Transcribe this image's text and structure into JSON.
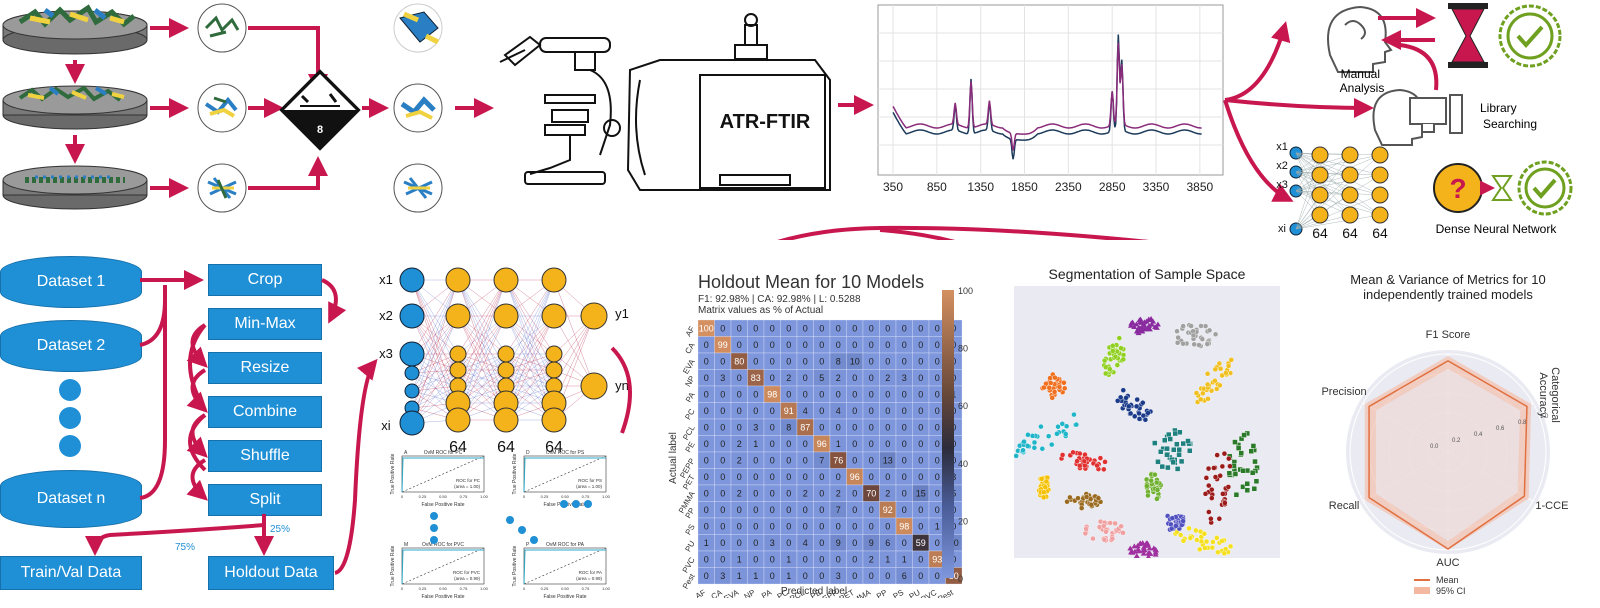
{
  "fig_top": {
    "hazard_number": "8",
    "instrument_label": "ATR-FTIR",
    "spectrum_xticks": [
      "350",
      "850",
      "1350",
      "1850",
      "2350",
      "2850",
      "3350",
      "3850"
    ],
    "manual_analysis": "Manual\nAnalysis",
    "library_searching": "Library\nSearching",
    "dnn_inputs": [
      "x1",
      "x2",
      "x3",
      "xi"
    ],
    "dnn_layer_sizes": [
      "64",
      "64",
      "64"
    ],
    "dnn_label": "Dense Neural Network"
  },
  "pipeline": {
    "datasets": [
      "Dataset 1",
      "Dataset 2",
      "Dataset n"
    ],
    "steps": [
      "Crop",
      "Min-Max",
      "Resize",
      "Combine",
      "Shuffle",
      "Split"
    ],
    "train_label": "Train/Val Data",
    "holdout_label": "Holdout Data",
    "split_75": "75%",
    "split_25": "25%"
  },
  "network": {
    "inputs": [
      "x1",
      "x2",
      "x3",
      "xi"
    ],
    "outputs": [
      "y1",
      "yn"
    ],
    "layer_sizes": [
      "64",
      "64",
      "64"
    ],
    "roc_titles": [
      "OvM ROC for PC",
      "OvM ROC for PS",
      "OvM ROC for PVC",
      "OvM ROC for PA"
    ],
    "roc_panel_letters": [
      "A",
      "D",
      "M",
      "P"
    ],
    "roc_legend": [
      "ROC for PC\n(area = 1.00)",
      "ROC for PS\n(area = 1.00)",
      "ROC for PVC\n(area = 0.99)",
      "ROC for PA\n(area = 0.99)"
    ],
    "roc_xlabel": "False Positive Rate",
    "roc_ylabel": "True Positive Rate"
  },
  "confusion": {
    "title": "Holdout Mean for 10 Models",
    "subtitle": "F1: 92.98% | CA: 92.98% | L: 0.5288",
    "subtitle2": "Matrix values as % of Actual",
    "xlabel": "Predicted label",
    "ylabel": "Actual label",
    "labels": [
      "AF",
      "CA",
      "EVA",
      "NP",
      "PA",
      "PC",
      "PCL",
      "PE",
      "PEPP",
      "PET",
      "PMMA",
      "PP",
      "PS",
      "PU",
      "PVC",
      "Pest"
    ],
    "colorbar_ticks": [
      "100",
      "80",
      "60",
      "40",
      "20",
      "0"
    ]
  },
  "chart_data": [
    {
      "type": "heatmap",
      "title": "Holdout Mean for 10 Models",
      "xlabel": "Predicted label",
      "ylabel": "Actual label",
      "categories": [
        "AF",
        "CA",
        "EVA",
        "NP",
        "PA",
        "PC",
        "PCL",
        "PE",
        "PEPP",
        "PET",
        "PMMA",
        "PP",
        "PS",
        "PU",
        "PVC",
        "Pest"
      ],
      "values": [
        [
          100,
          0,
          0,
          0,
          0,
          0,
          0,
          0,
          0,
          0,
          0,
          0,
          0,
          0,
          0,
          0
        ],
        [
          0,
          99,
          0,
          0,
          0,
          0,
          0,
          0,
          0,
          0,
          0,
          0,
          0,
          0,
          0,
          0
        ],
        [
          0,
          0,
          80,
          0,
          0,
          0,
          0,
          0,
          8,
          10,
          0,
          0,
          0,
          0,
          0,
          0
        ],
        [
          0,
          3,
          0,
          83,
          0,
          2,
          0,
          5,
          2,
          0,
          0,
          2,
          3,
          0,
          0,
          0
        ],
        [
          0,
          0,
          0,
          0,
          98,
          0,
          0,
          0,
          0,
          0,
          0,
          0,
          0,
          0,
          0,
          1
        ],
        [
          0,
          0,
          0,
          0,
          0,
          91,
          4,
          0,
          4,
          0,
          0,
          0,
          0,
          0,
          0,
          0
        ],
        [
          0,
          0,
          0,
          3,
          0,
          8,
          87,
          0,
          0,
          0,
          0,
          0,
          0,
          0,
          0,
          0
        ],
        [
          0,
          0,
          2,
          1,
          0,
          0,
          0,
          96,
          1,
          0,
          0,
          0,
          0,
          0,
          0,
          0
        ],
        [
          0,
          0,
          2,
          0,
          0,
          0,
          0,
          7,
          76,
          0,
          0,
          13,
          0,
          0,
          0,
          0
        ],
        [
          0,
          0,
          0,
          0,
          0,
          0,
          0,
          0,
          0,
          96,
          0,
          0,
          0,
          0,
          0,
          3
        ],
        [
          0,
          0,
          2,
          0,
          0,
          0,
          2,
          0,
          2,
          0,
          70,
          2,
          0,
          15,
          0,
          5
        ],
        [
          0,
          0,
          0,
          0,
          0,
          0,
          0,
          0,
          7,
          0,
          0,
          92,
          0,
          0,
          0,
          0
        ],
        [
          0,
          0,
          0,
          0,
          0,
          0,
          0,
          0,
          0,
          0,
          0,
          0,
          98,
          0,
          1,
          0
        ],
        [
          1,
          0,
          0,
          0,
          3,
          0,
          4,
          0,
          9,
          0,
          9,
          6,
          0,
          59,
          0,
          10
        ],
        [
          0,
          0,
          1,
          0,
          0,
          1,
          0,
          0,
          0,
          0,
          2,
          1,
          1,
          0,
          93,
          0
        ],
        [
          0,
          3,
          1,
          1,
          0,
          1,
          0,
          0,
          3,
          0,
          0,
          0,
          6,
          0,
          0,
          80
        ]
      ],
      "zlim": [
        0,
        100
      ]
    },
    {
      "type": "line",
      "xlim": [
        350,
        4000
      ],
      "xticks": [
        350,
        850,
        1350,
        1850,
        2350,
        2850,
        3350,
        3850
      ]
    },
    {
      "type": "radar",
      "title": "Mean & Variance of Metrics for 10 independently trained models",
      "axes": [
        "F1 Score",
        "Categorical Accuracy",
        "1-CCE",
        "AUC",
        "Recall",
        "Precision"
      ],
      "series": [
        {
          "name": "Mean",
          "values": [
            0.93,
            0.93,
            0.9,
            0.99,
            0.93,
            0.93
          ]
        }
      ],
      "legend": [
        "Mean",
        "95% CI"
      ],
      "rings": [
        "0.0",
        "0.2",
        "0.4",
        "0.6",
        "0.8",
        "1.0"
      ]
    }
  ],
  "tsne": {
    "title": "Segmentation of Sample Space"
  },
  "radar": {
    "title_line1": "Mean & Variance of Metrics for 10",
    "title_line2": "independently trained models",
    "axes": [
      "Precision",
      "F1 Score",
      "Categorical\nAccuracy",
      "1-CCE",
      "AUC",
      "Recall"
    ],
    "ring_labels": [
      "0.0",
      "0.2",
      "0.4",
      "0.6",
      "0.8",
      "1.0"
    ],
    "legend_mean": "Mean",
    "legend_ci": "95% CI"
  },
  "colors": {
    "accent": "#c8174e",
    "box": "#1f8fd6",
    "node": "#f5b31b"
  }
}
